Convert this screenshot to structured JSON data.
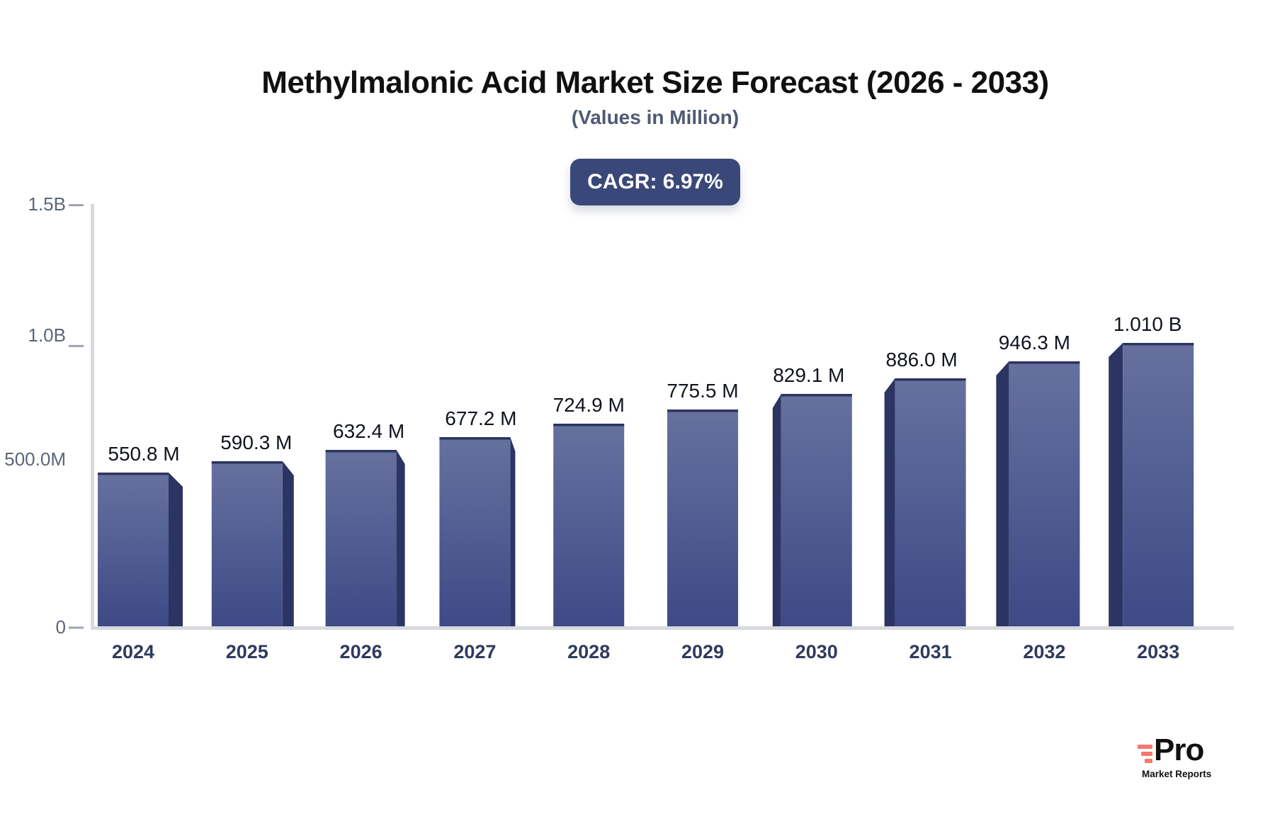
{
  "header": {
    "title": "Methylmalonic Acid Market Size Forecast (2026 - 2033)",
    "subtitle": "(Values in Million)"
  },
  "badge": {
    "label": "CAGR: 6.97%"
  },
  "chart_data": {
    "type": "bar",
    "title": "Methylmalonic Acid Market Size Forecast (2026 - 2033)",
    "subtitle": "(Values in Million)",
    "cagr_percent": 6.97,
    "categories": [
      "2024",
      "2025",
      "2026",
      "2027",
      "2028",
      "2029",
      "2030",
      "2031",
      "2032",
      "2033"
    ],
    "values_millions": [
      550.8,
      590.3,
      632.4,
      677.2,
      724.9,
      775.5,
      829.1,
      886.0,
      946.3,
      1010
    ],
    "value_labels": [
      "550.8 M",
      "590.3 M",
      "632.4 M",
      "677.2 M",
      "724.9 M",
      "775.5 M",
      "829.1 M",
      "886.0 M",
      "946.3 M",
      "1.010 B"
    ],
    "ylim_millions": [
      0,
      1500
    ],
    "yticks": [
      {
        "label": "1.5B",
        "value_millions": 1500,
        "dash": true
      },
      {
        "label": "1.0B",
        "value_millions": 1000,
        "dash": true
      },
      {
        "label": "500.0M",
        "value_millions": 500,
        "dash": false
      },
      {
        "label": "0",
        "value_millions": 0,
        "dash": true
      }
    ],
    "grid": false,
    "legend": false
  },
  "colors": {
    "bar_face_top": "#66719F",
    "bar_face_bottom": "#3E4986",
    "bar_side": "#2B3462",
    "bar_top_edge": "#2C355F",
    "axis_line": "#D7D9DF",
    "tick_dash": "#9EA3AD",
    "badge_bg": "#3A4879",
    "badge_text": "#FFFFFF",
    "logo_accent": "#F4796C"
  },
  "logo": {
    "name": "Pro",
    "tagline": "Market Reports"
  }
}
